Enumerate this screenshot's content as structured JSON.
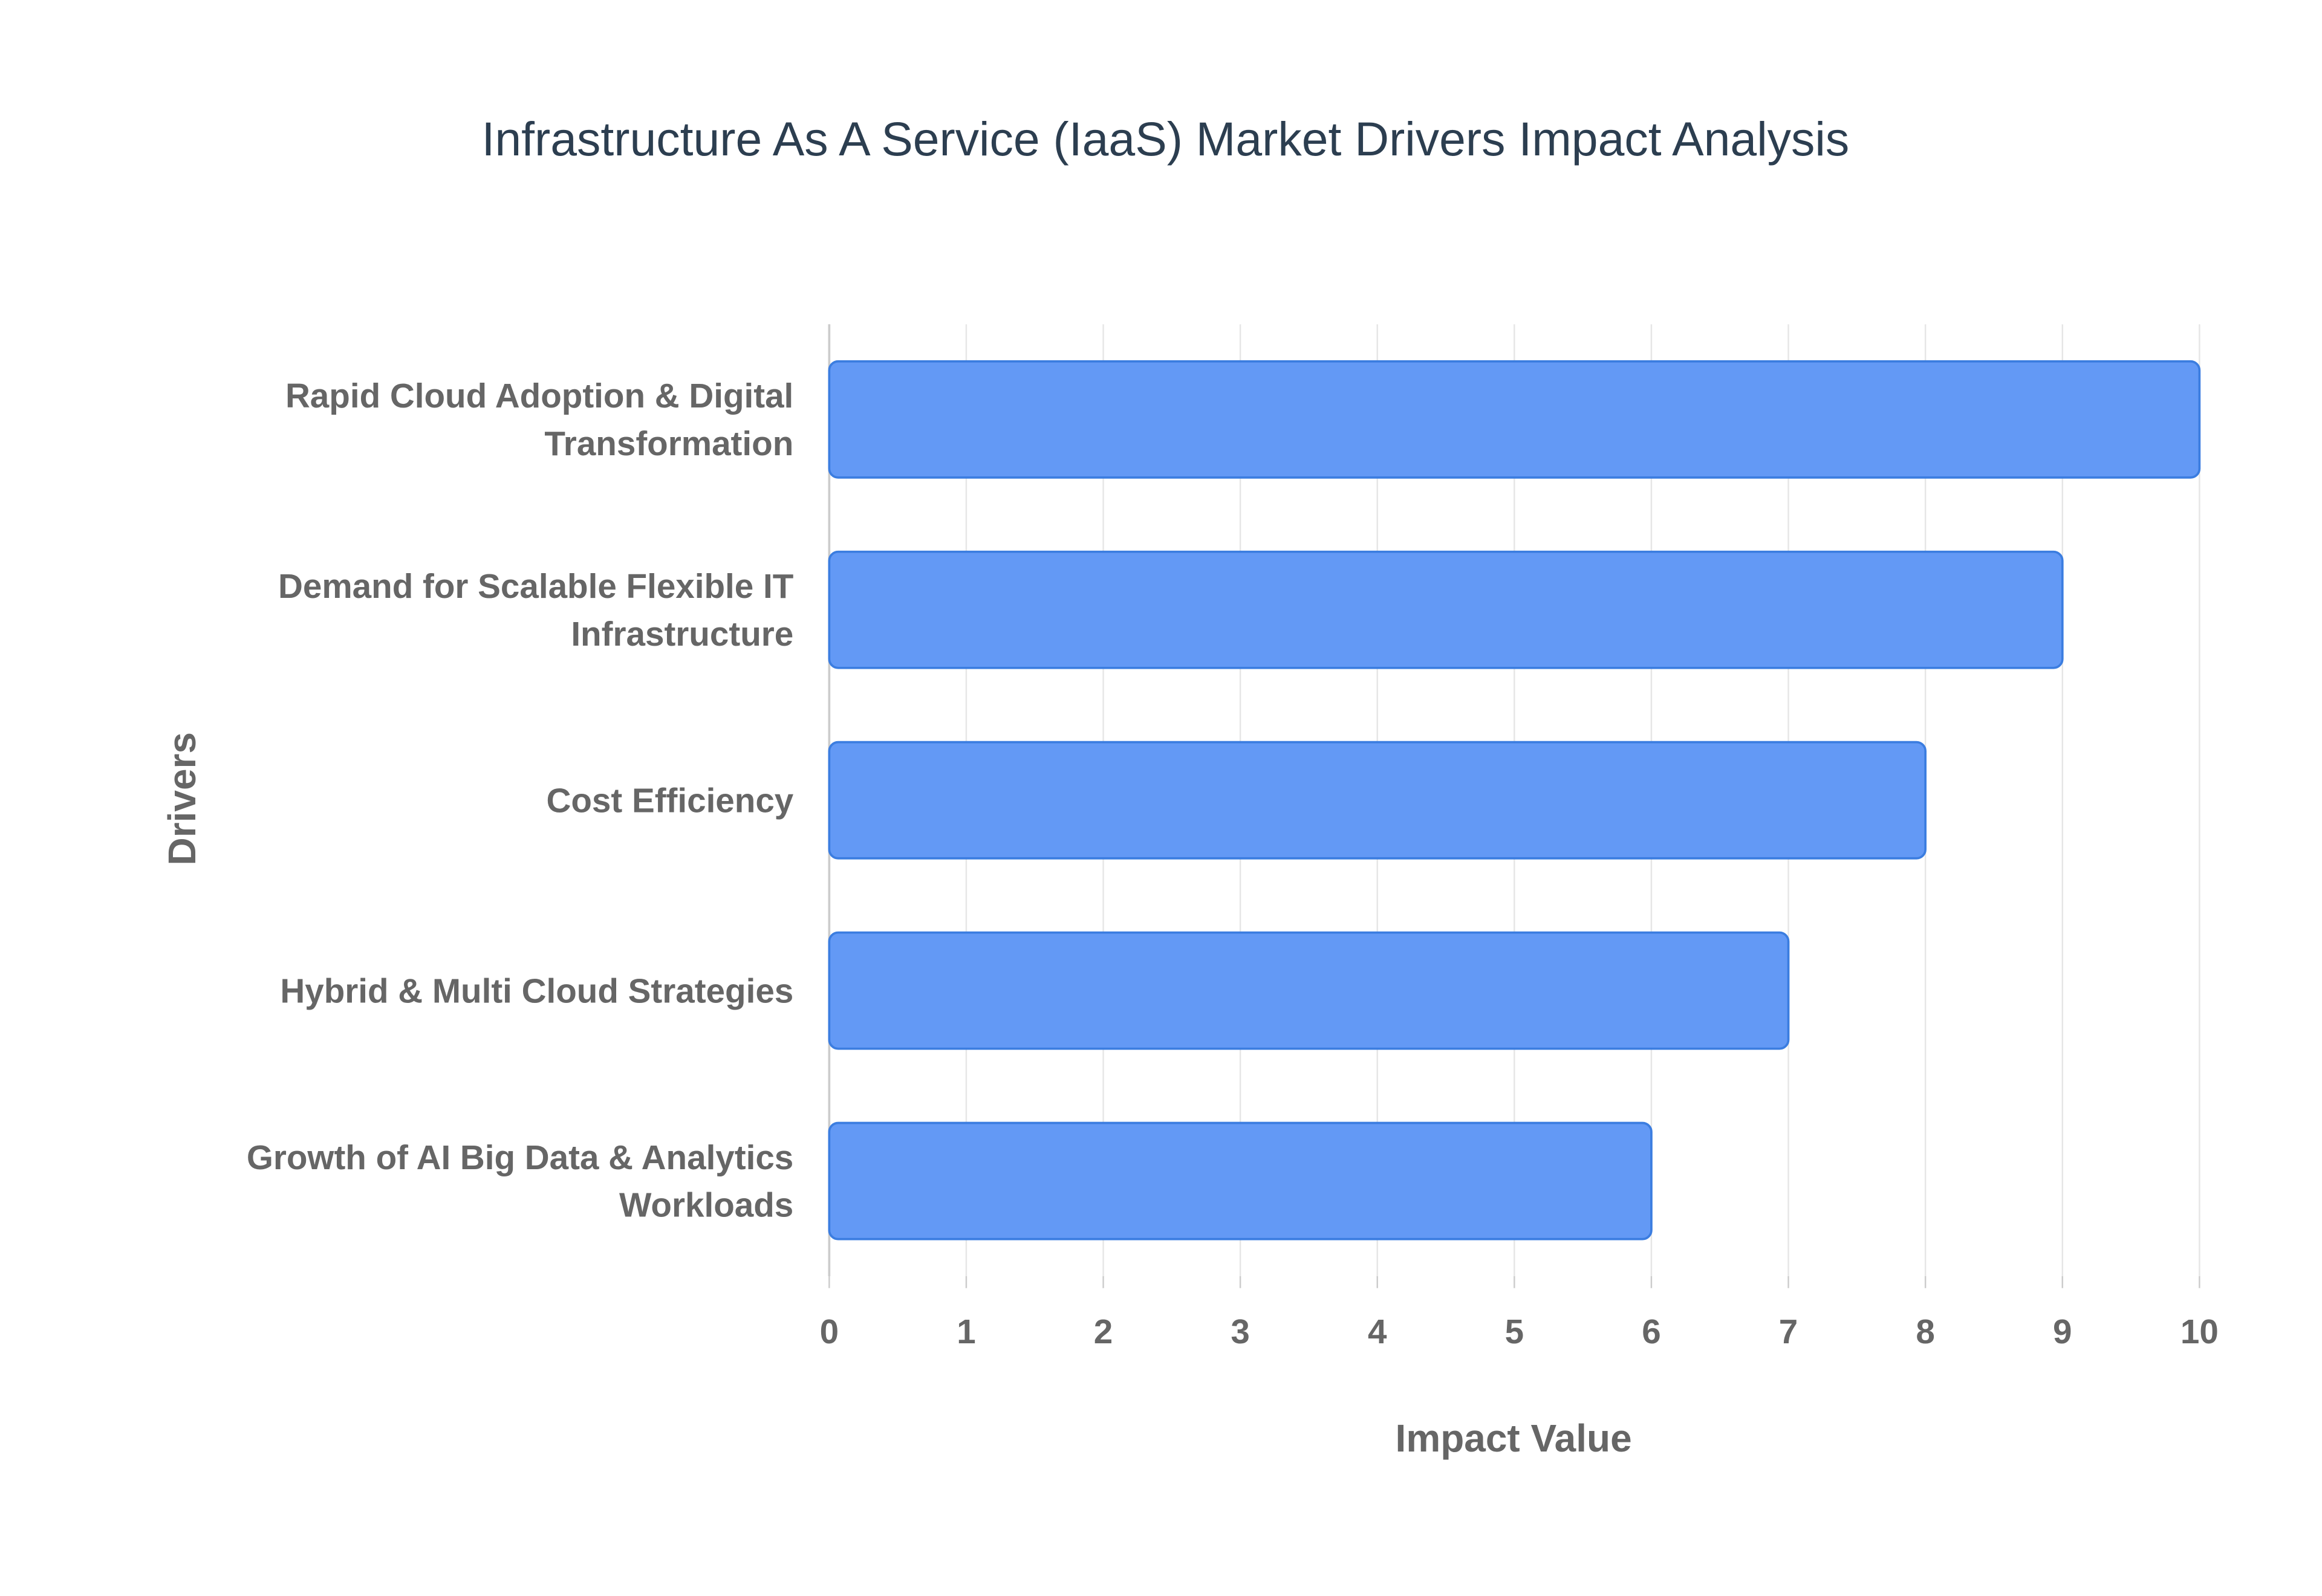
{
  "chart_data": {
    "type": "bar",
    "orientation": "horizontal",
    "title": "Infrastructure As A Service (IaaS) Market Drivers Impact Analysis",
    "x_label": "Impact Value",
    "y_label": "Drivers",
    "categories": [
      "Rapid Cloud Adoption & Digital Transformation",
      "Demand for Scalable Flexible IT Infrastructure",
      "Cost Efficiency",
      "Hybrid & Multi Cloud Strategies",
      "Growth of AI Big Data & Analytics Workloads"
    ],
    "values": [
      10,
      9,
      8,
      7,
      6
    ],
    "color": "#6399f5",
    "edge_color": "#3b7de0",
    "xlim": [
      0,
      10
    ],
    "xticks": [
      0,
      1,
      2,
      3,
      4,
      5,
      6,
      7,
      8,
      9,
      10
    ],
    "grid": true
  }
}
